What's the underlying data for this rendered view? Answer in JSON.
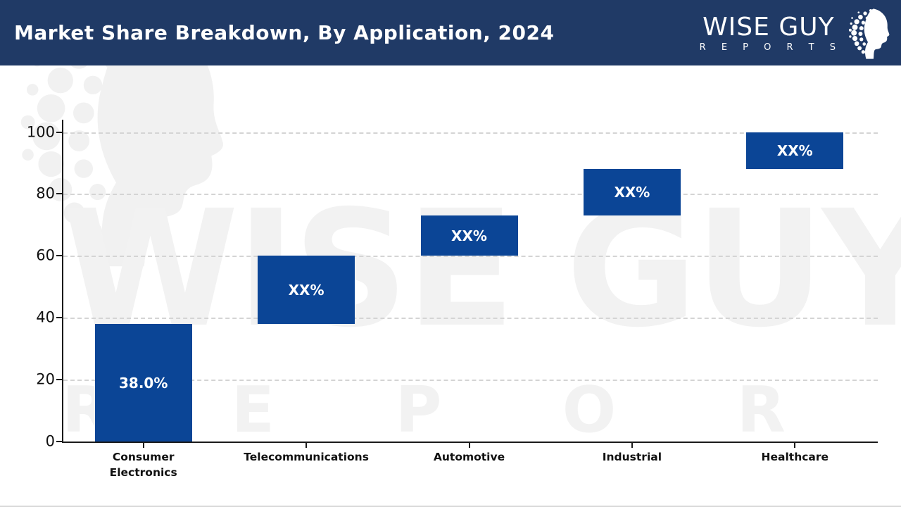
{
  "header": {
    "title": "Market Share Breakdown, By Application, 2024",
    "logo": {
      "name_top": "WISE GUY",
      "name_bottom": "R E P O R T S",
      "icon": "dotted-head-profile"
    }
  },
  "watermark": {
    "text_top": "WISE GUY",
    "text_bottom": "R E P O R T S",
    "icon": "dotted-head-profile"
  },
  "colors": {
    "header_bg": "#203a66",
    "header_text": "#ffffff",
    "bar": "#0b4596",
    "bar_label": "#ffffff",
    "axis": "#1a1a1a",
    "gridline": "#d4d4d4",
    "tick_label": "#111111",
    "watermark": "#f2f2f2"
  },
  "chart_data": {
    "type": "bar",
    "subtype": "waterfall",
    "title": "Market Share Breakdown, By Application, 2024",
    "categories": [
      "Consumer\nElectronics",
      "Telecommunications",
      "Automotive",
      "Industrial",
      "Healthcare"
    ],
    "bars": [
      {
        "category": "Consumer\nElectronics",
        "start": 0,
        "end": 38,
        "value": 38.0,
        "label": "38.0%"
      },
      {
        "category": "Telecommunications",
        "start": 38,
        "end": 60,
        "value": 22,
        "label": "XX%"
      },
      {
        "category": "Automotive",
        "start": 60,
        "end": 73,
        "value": 13,
        "label": "XX%"
      },
      {
        "category": "Industrial",
        "start": 73,
        "end": 88,
        "value": 15,
        "label": "XX%"
      },
      {
        "category": "Healthcare",
        "start": 88,
        "end": 100,
        "value": 12,
        "label": "XX%"
      }
    ],
    "xlabel": "",
    "ylabel": "",
    "yticks": [
      0,
      20,
      40,
      60,
      80,
      100
    ],
    "ylim": [
      0,
      104
    ],
    "grid": "horizontal-dashed",
    "legend": "none",
    "bar_label_note": "values other than first bar are masked as XX% in source image"
  }
}
